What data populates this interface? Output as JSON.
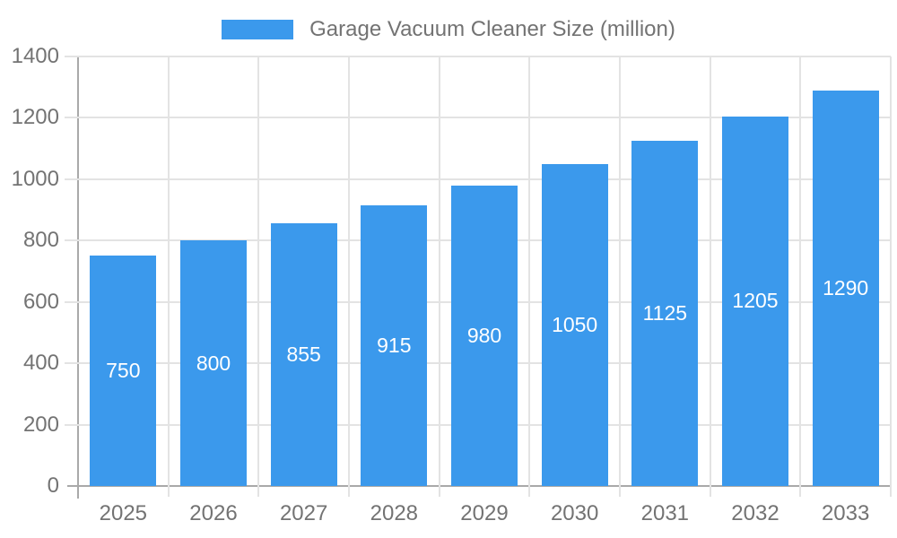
{
  "colors": {
    "bar": "#3B99EC",
    "bar_label": "#FFFFFF",
    "axis": "#A9A9A9",
    "grid": "#E3E3E3",
    "text": "#737373",
    "background": "#FFFFFF"
  },
  "chart_data": {
    "type": "bar",
    "title": "Garage Vacuum Cleaner Size (million)",
    "categories": [
      "2025",
      "2026",
      "2027",
      "2028",
      "2029",
      "2030",
      "2031",
      "2032",
      "2033"
    ],
    "values": [
      750,
      800,
      855,
      915,
      980,
      1050,
      1125,
      1205,
      1290
    ],
    "xlabel": "",
    "ylabel": "",
    "ylim": [
      0,
      1400
    ],
    "y_ticks": [
      0,
      200,
      400,
      600,
      800,
      1000,
      1200,
      1400
    ],
    "grid": true,
    "legend_position": "top",
    "value_labels": "inside-center"
  }
}
